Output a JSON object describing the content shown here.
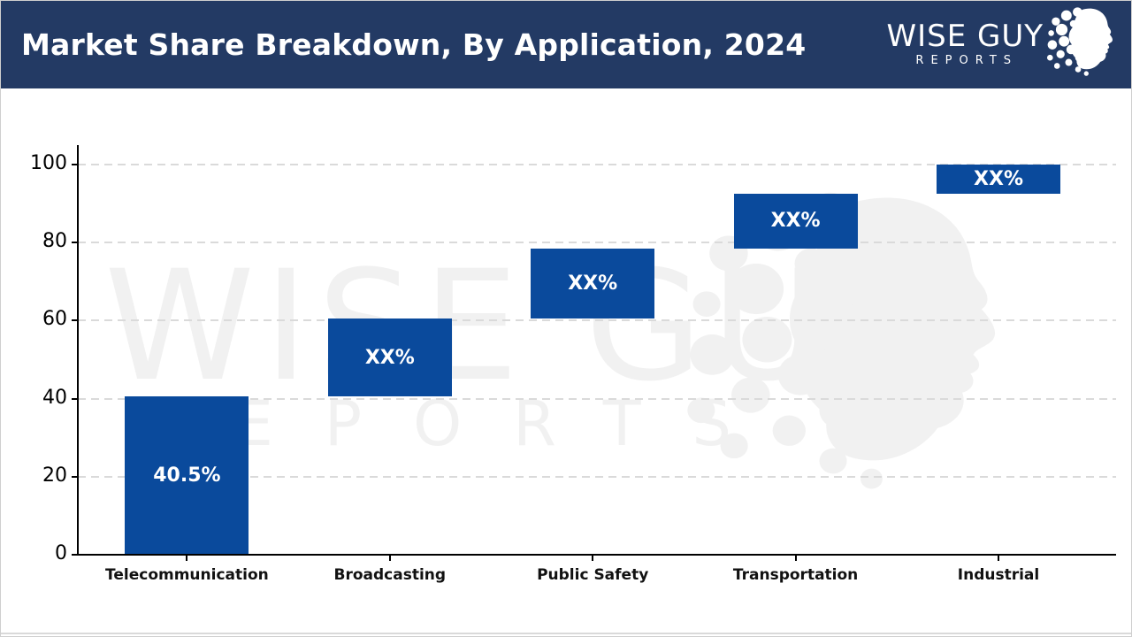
{
  "header": {
    "title": "Market Share Breakdown, By Application, 2024",
    "background_color": "#233a64",
    "logo": {
      "wordmark": "WISE GUY",
      "subtext": "REPORTS"
    }
  },
  "watermark": {
    "wordmark": "WISE GUY",
    "subtext": "REPORTS"
  },
  "chart_data": {
    "type": "bar",
    "subtype": "floating-segment-waterfall",
    "title": "Market Share Breakdown, By Application, 2024",
    "categories": [
      "Telecommunication",
      "Broadcasting",
      "Public Safety",
      "Transportation",
      "Industrial"
    ],
    "segments": [
      {
        "category": "Telecommunication",
        "start": 0,
        "end": 40.5,
        "value": 40.5,
        "label": "40.5%"
      },
      {
        "category": "Broadcasting",
        "start": 40.5,
        "end": 60.5,
        "value": 20,
        "label": "XX%"
      },
      {
        "category": "Public Safety",
        "start": 60.5,
        "end": 78.5,
        "value": 18,
        "label": "XX%"
      },
      {
        "category": "Transportation",
        "start": 78.5,
        "end": 92.5,
        "value": 14,
        "label": "XX%"
      },
      {
        "category": "Industrial",
        "start": 92.5,
        "end": 100,
        "value": 7.5,
        "label": "XX%"
      }
    ],
    "y_ticks": [
      0,
      20,
      40,
      60,
      80,
      100
    ],
    "ylim": [
      0,
      105
    ],
    "xlabel": "",
    "ylabel": "",
    "grid": "horizontal-dashed",
    "legend": "none",
    "bar_color": "#0a4a9c",
    "bar_label_color": "#ffffff",
    "axis_color": "#000000",
    "note": "Only the first segment value is disclosed; remaining values are masked as XX% in the source image."
  }
}
